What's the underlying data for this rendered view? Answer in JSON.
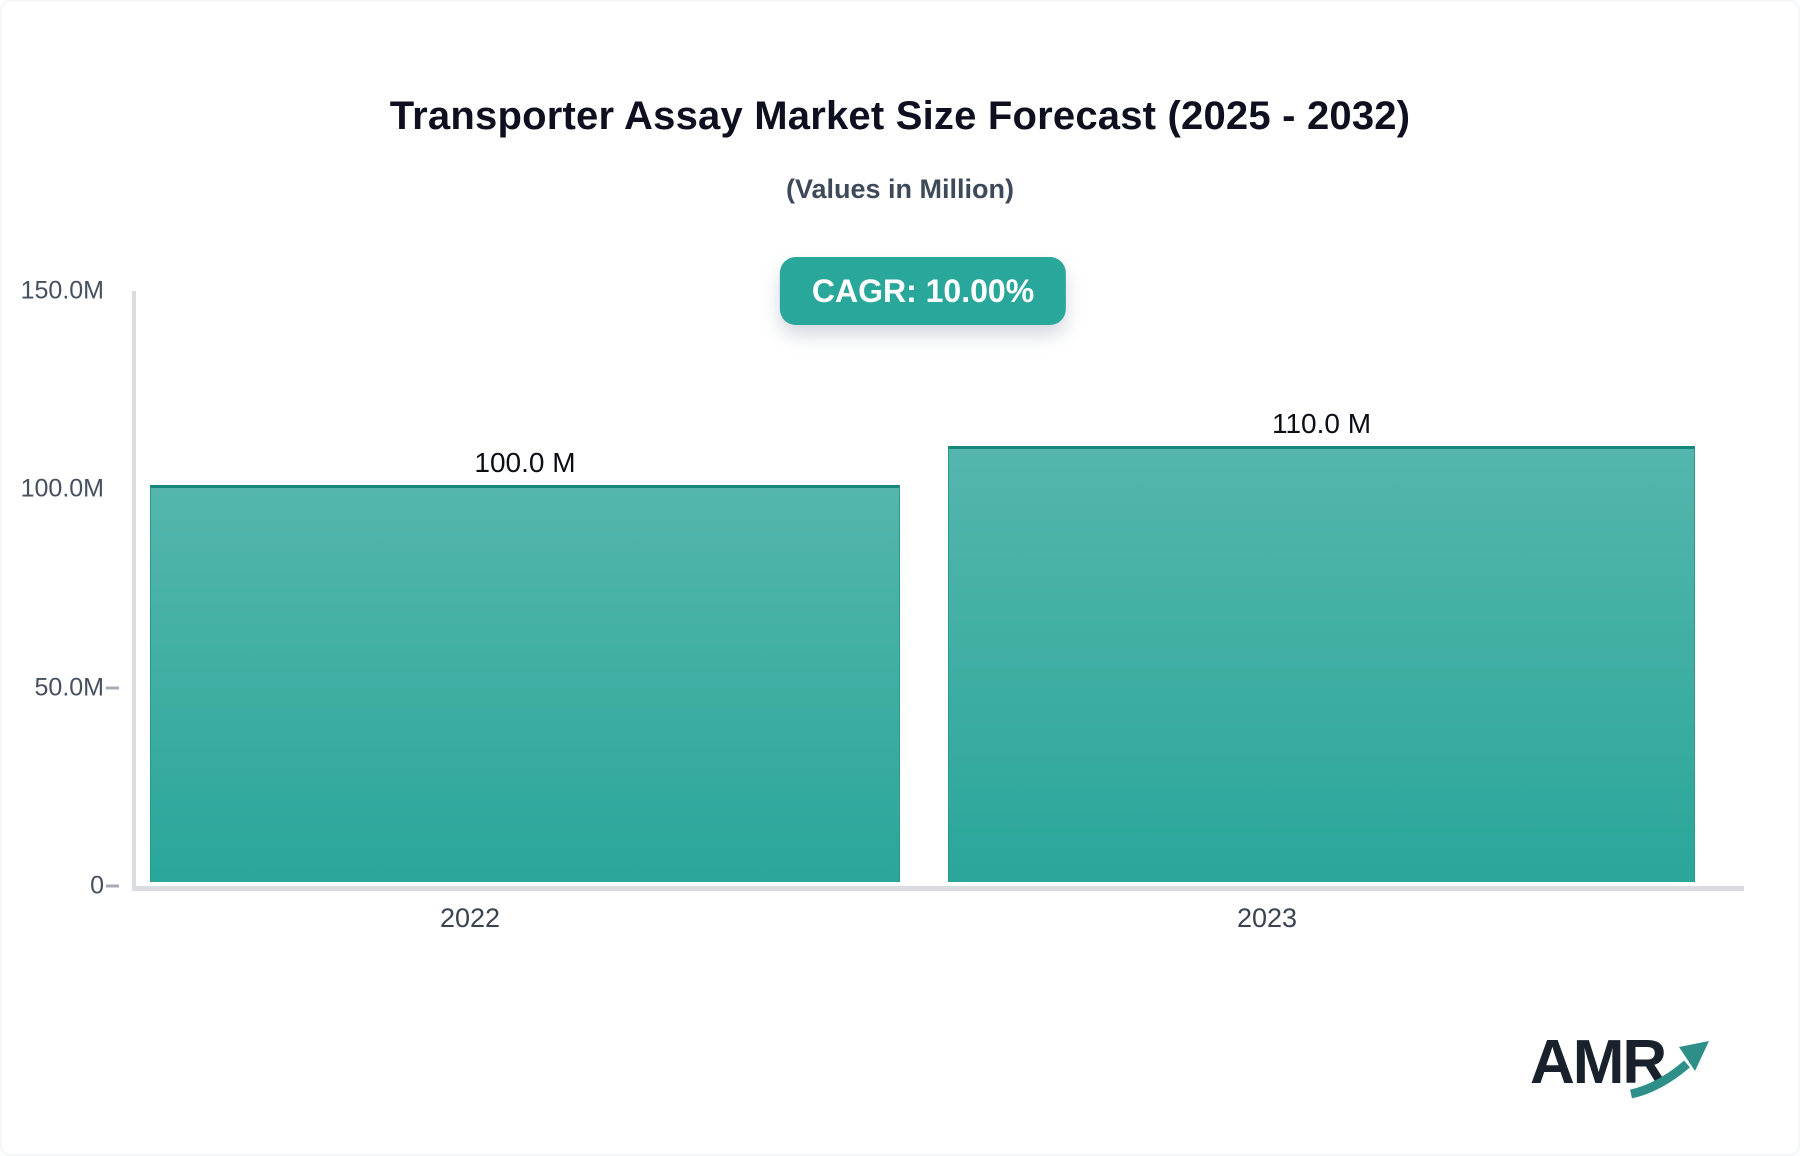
{
  "chart_data": {
    "type": "bar",
    "title": "Transporter Assay Market Size Forecast (2025 - 2032)",
    "subtitle": "(Values in Million)",
    "annotation": "CAGR: 10.00%",
    "categories": [
      "2022",
      "2023"
    ],
    "values": [
      100.0,
      110.0
    ],
    "value_labels": [
      "100.0 M",
      "110.0 M"
    ],
    "xlabel": "",
    "ylabel": "",
    "ylim": [
      0,
      150
    ],
    "yticks": [
      {
        "value": 150,
        "label": "150.0M"
      },
      {
        "value": 100,
        "label": "100.0M"
      },
      {
        "value": 50,
        "label": "50.0M"
      },
      {
        "value": 0,
        "label": "0"
      }
    ],
    "grid": false,
    "legend": false,
    "bar_color": "#2aa69a"
  },
  "logo": {
    "text": "AMR"
  },
  "colors": {
    "bar_top": "#54b6ad",
    "bar_bottom": "#2aa69a",
    "bar_border": "#17867c",
    "bar_side": "#2a9a91",
    "badge_bg": "#2aa79b",
    "axis": "#d9dce1",
    "tick": "#a6acb5",
    "text_dark": "#0e101f",
    "text_slate": "#3e4959",
    "logo_dark": "#19222c",
    "logo_teal": "#2e8f89"
  }
}
